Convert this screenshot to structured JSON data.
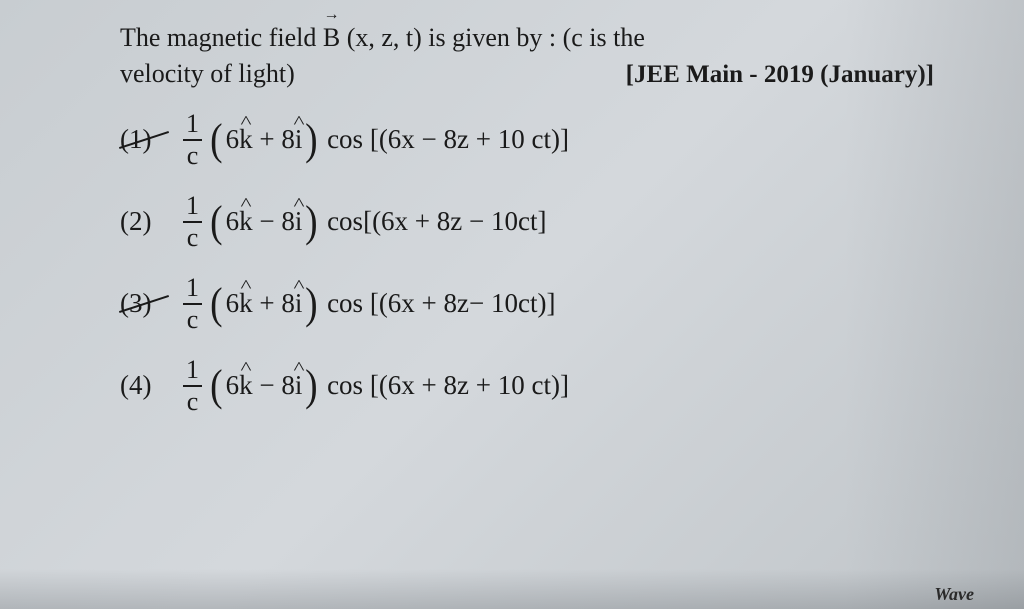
{
  "colors": {
    "text": "#1a1a1a",
    "background_gradient_start": "#c8cdd1",
    "background_gradient_mid": "#d4d8dc",
    "background_gradient_end": "#c0c5c9"
  },
  "typography": {
    "body_fontsize": 26,
    "option_fontsize": 27,
    "source_fontsize": 25,
    "font_family": "Times New Roman"
  },
  "question": {
    "line1_part1": "The magnetic field ",
    "line1_vector": "B",
    "line1_part2": "(x, z, t) is given by : (c is the",
    "line2_left": "velocity of light)",
    "line2_right": "[JEE Main - 2019 (January)]"
  },
  "options": [
    {
      "num": "(1)",
      "struck": true,
      "frac_num": "1",
      "frac_den": "c",
      "vec_k_coeff": "6",
      "vec_sign": "+",
      "vec_i_coeff": "8",
      "cos_arg": "(6x − 8z + 10 ct)"
    },
    {
      "num": "(2)",
      "struck": false,
      "frac_num": "1",
      "frac_den": "c",
      "vec_k_coeff": "6",
      "vec_sign": "−",
      "vec_i_coeff": "8",
      "cos_arg": "(6x + 8z − 10ct]"
    },
    {
      "num": "(3)",
      "struck": true,
      "frac_num": "1",
      "frac_den": "c",
      "vec_k_coeff": "6",
      "vec_sign": "+",
      "vec_i_coeff": "8",
      "cos_arg": "(6x + 8z− 10ct)"
    },
    {
      "num": "(4)",
      "struck": false,
      "frac_num": "1",
      "frac_den": "c",
      "vec_k_coeff": "6",
      "vec_sign": "−",
      "vec_i_coeff": "8",
      "cos_arg": "(6x + 8z + 10 ct)"
    }
  ],
  "cos_label": "cos",
  "unit_k": "k",
  "unit_i": "i",
  "bottom_fragment": "Wave"
}
